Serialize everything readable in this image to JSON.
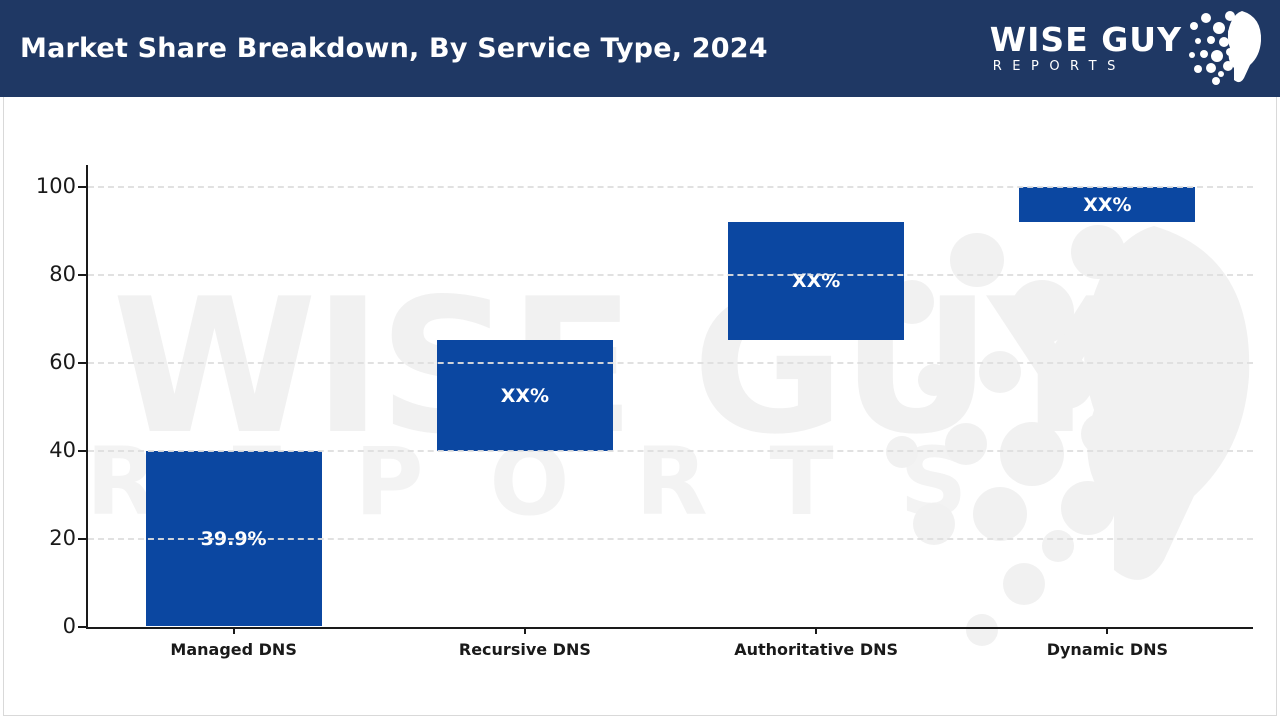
{
  "header": {
    "title": "Market Share Breakdown, By Service Type, 2024",
    "logo": {
      "primary": "WISE GUY",
      "secondary": "REPORTS"
    },
    "colors": {
      "background": "#1f3864",
      "text": "#ffffff"
    }
  },
  "watermark": {
    "line1": "WISE GUY",
    "line2": "REPORTS"
  },
  "chart_data": {
    "type": "bar",
    "subtype": "waterfall",
    "title": "Market Share Breakdown, By Service Type, 2024",
    "categories": [
      "Managed DNS",
      "Recursive DNS",
      "Authoritative DNS",
      "Dynamic DNS"
    ],
    "segments": [
      {
        "category": "Managed DNS",
        "start": 0,
        "end": 39.9,
        "label": "39.9%"
      },
      {
        "category": "Recursive DNS",
        "start": 39.9,
        "end": 65.1,
        "label": "XX%"
      },
      {
        "category": "Authoritative DNS",
        "start": 65.1,
        "end": 92.0,
        "label": "XX%"
      },
      {
        "category": "Dynamic DNS",
        "start": 92.0,
        "end": 100.0,
        "label": "XX%"
      }
    ],
    "yticks": [
      0,
      20,
      40,
      60,
      80,
      100
    ],
    "ylim": [
      0,
      105
    ],
    "grid": {
      "axis": "y",
      "style": "dashed",
      "color": "#dedede"
    },
    "legend": "none",
    "colors": {
      "bar": "#0b47a1",
      "bar_label": "#ffffff",
      "axis": "#1a1a1a",
      "tick_label": "#1a1a1a"
    }
  }
}
